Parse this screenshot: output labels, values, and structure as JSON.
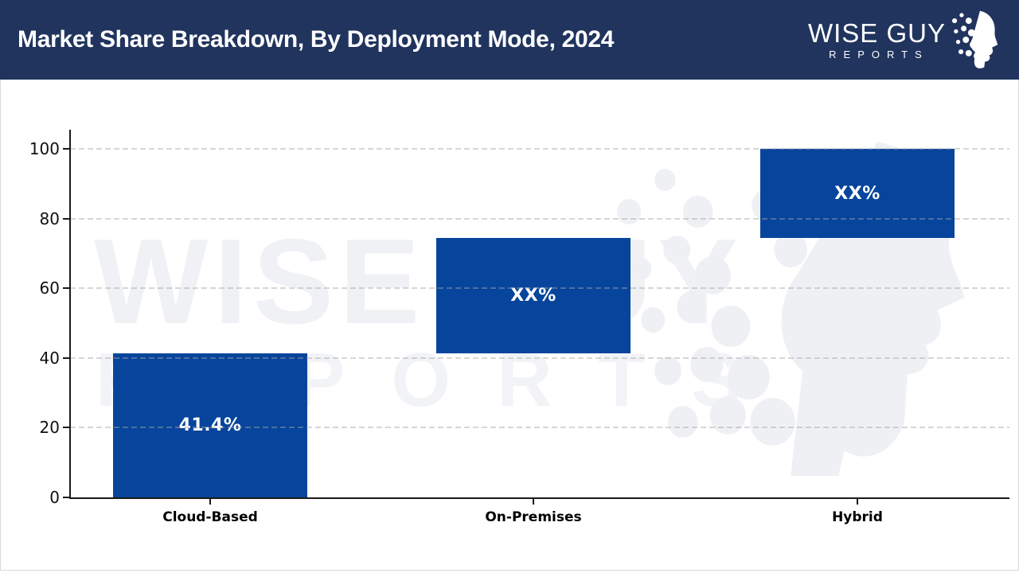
{
  "header": {
    "title": "Market Share Breakdown, By Deployment Mode, 2024",
    "bg_color": "#20345e",
    "logo": {
      "line1": "WISE GUY",
      "line2": "REPORTS"
    }
  },
  "watermark": {
    "row1": "WISE GUY",
    "row2": "REPORTS"
  },
  "chart_data": {
    "type": "bar",
    "variant": "waterfall",
    "title": "Market Share Breakdown, By Deployment Mode, 2024",
    "categories": [
      "Cloud-Based",
      "On-Premises",
      "Hybrid"
    ],
    "segments": [
      {
        "category": "Cloud-Based",
        "start": 0,
        "end": 41.4,
        "label": "41.4%"
      },
      {
        "category": "On-Premises",
        "start": 41.4,
        "end": 74.4,
        "label": "XX%"
      },
      {
        "category": "Hybrid",
        "start": 74.4,
        "end": 100,
        "label": "XX%"
      }
    ],
    "ylim": [
      0,
      100
    ],
    "yticks": [
      0,
      20,
      40,
      60,
      80,
      100
    ],
    "bar_color": "#07459c",
    "grid": "horizontal-dashed",
    "legend": "none"
  }
}
